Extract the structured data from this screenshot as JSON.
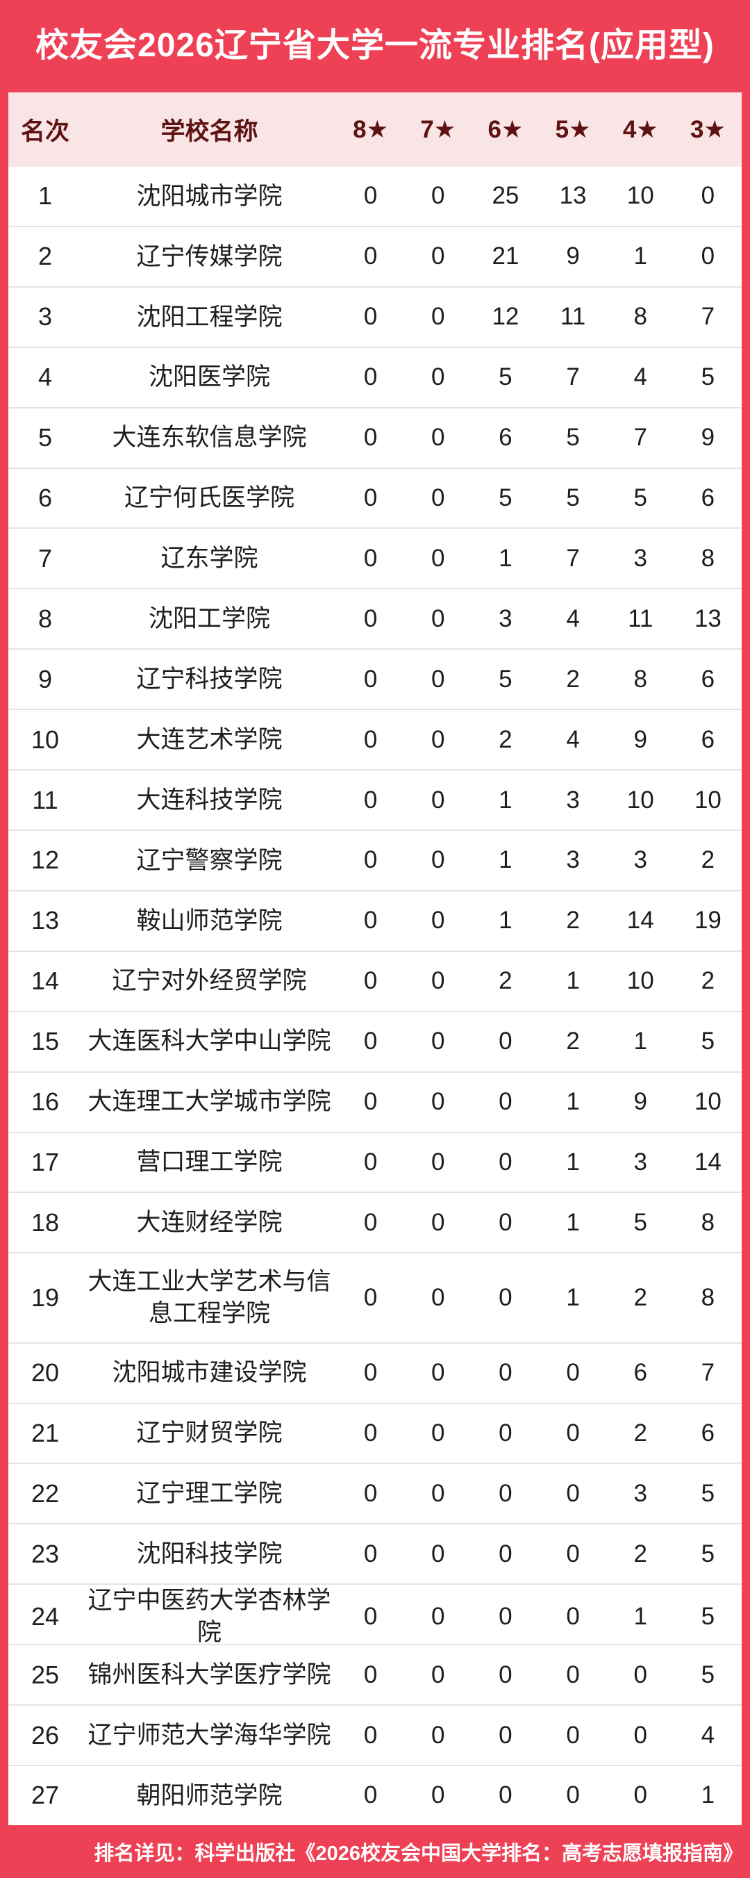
{
  "title": "校友会2026辽宁省大学一流专业排名(应用型)",
  "chart_data": {
    "type": "table",
    "title": "校友会2026辽宁省大学一流专业排名(应用型)",
    "columns": [
      "名次",
      "学校名称",
      "8★",
      "7★",
      "6★",
      "5★",
      "4★",
      "3★"
    ],
    "rows": [
      [
        "1",
        "沈阳城市学院",
        "0",
        "0",
        "25",
        "13",
        "10",
        "0"
      ],
      [
        "2",
        "辽宁传媒学院",
        "0",
        "0",
        "21",
        "9",
        "1",
        "0"
      ],
      [
        "3",
        "沈阳工程学院",
        "0",
        "0",
        "12",
        "11",
        "8",
        "7"
      ],
      [
        "4",
        "沈阳医学院",
        "0",
        "0",
        "5",
        "7",
        "4",
        "5"
      ],
      [
        "5",
        "大连东软信息学院",
        "0",
        "0",
        "6",
        "5",
        "7",
        "9"
      ],
      [
        "6",
        "辽宁何氏医学院",
        "0",
        "0",
        "5",
        "5",
        "5",
        "6"
      ],
      [
        "7",
        "辽东学院",
        "0",
        "0",
        "1",
        "7",
        "3",
        "8"
      ],
      [
        "8",
        "沈阳工学院",
        "0",
        "0",
        "3",
        "4",
        "11",
        "13"
      ],
      [
        "9",
        "辽宁科技学院",
        "0",
        "0",
        "5",
        "2",
        "8",
        "6"
      ],
      [
        "10",
        "大连艺术学院",
        "0",
        "0",
        "2",
        "4",
        "9",
        "6"
      ],
      [
        "11",
        "大连科技学院",
        "0",
        "0",
        "1",
        "3",
        "10",
        "10"
      ],
      [
        "12",
        "辽宁警察学院",
        "0",
        "0",
        "1",
        "3",
        "3",
        "2"
      ],
      [
        "13",
        "鞍山师范学院",
        "0",
        "0",
        "1",
        "2",
        "14",
        "19"
      ],
      [
        "14",
        "辽宁对外经贸学院",
        "0",
        "0",
        "2",
        "1",
        "10",
        "2"
      ],
      [
        "15",
        "大连医科大学中山学院",
        "0",
        "0",
        "0",
        "2",
        "1",
        "5"
      ],
      [
        "16",
        "大连理工大学城市学院",
        "0",
        "0",
        "0",
        "1",
        "9",
        "10"
      ],
      [
        "17",
        "营口理工学院",
        "0",
        "0",
        "0",
        "1",
        "3",
        "14"
      ],
      [
        "18",
        "大连财经学院",
        "0",
        "0",
        "0",
        "1",
        "5",
        "8"
      ],
      [
        "19",
        "大连工业大学艺术与信息工程学院",
        "0",
        "0",
        "0",
        "1",
        "2",
        "8"
      ],
      [
        "20",
        "沈阳城市建设学院",
        "0",
        "0",
        "0",
        "0",
        "6",
        "7"
      ],
      [
        "21",
        "辽宁财贸学院",
        "0",
        "0",
        "0",
        "0",
        "2",
        "6"
      ],
      [
        "22",
        "辽宁理工学院",
        "0",
        "0",
        "0",
        "0",
        "3",
        "5"
      ],
      [
        "23",
        "沈阳科技学院",
        "0",
        "0",
        "0",
        "0",
        "2",
        "5"
      ],
      [
        "24",
        "辽宁中医药大学杏林学院",
        "0",
        "0",
        "0",
        "0",
        "1",
        "5"
      ],
      [
        "25",
        "锦州医科大学医疗学院",
        "0",
        "0",
        "0",
        "0",
        "0",
        "5"
      ],
      [
        "26",
        "辽宁师范大学海华学院",
        "0",
        "0",
        "0",
        "0",
        "0",
        "4"
      ],
      [
        "27",
        "朝阳师范学院",
        "0",
        "0",
        "0",
        "0",
        "0",
        "1"
      ]
    ],
    "footer_note": "排名详见：科学出版社《2026校友会中国大学排名：高考志愿填报指南》"
  },
  "colors": {
    "accent_red": "#EE4156",
    "header_bg": "#F9E5E5",
    "header_text": "#5E1212",
    "row_text": "#1E1E1E",
    "divider": "#E7E3E3",
    "card_bg": "#FFFFFF",
    "title_text": "#FFFFFF",
    "footer_text": "#FFFFFF"
  }
}
